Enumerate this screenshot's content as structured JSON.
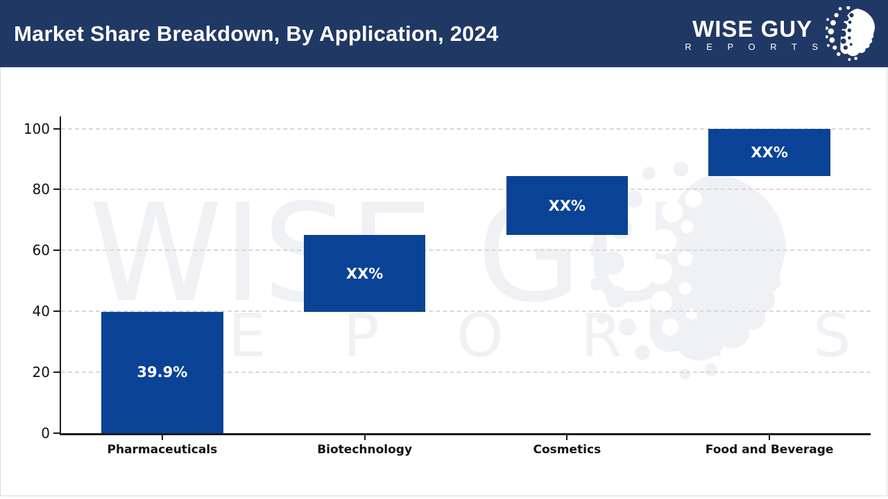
{
  "header": {
    "title": "Market Share Breakdown, By Application, 2024",
    "logo": {
      "line1": "WISE GUY",
      "line2": "R E P O R T S"
    }
  },
  "watermark": {
    "line1": "WISE GUY",
    "line2": "R E P O R T S"
  },
  "chart_data": {
    "type": "bar",
    "subtype": "floating-waterfall",
    "title": "Market Share Breakdown, By Application, 2024",
    "categories": [
      "Pharmaceuticals",
      "Biotechnology",
      "Cosmetics",
      "Food and Beverage"
    ],
    "series": [
      {
        "name": "Market share (%)",
        "ranges": [
          [
            0,
            39.9
          ],
          [
            39.9,
            65
          ],
          [
            65,
            84.5
          ],
          [
            84.5,
            100
          ]
        ],
        "labels": [
          "39.9%",
          "XX%",
          "XX%",
          "XX%"
        ]
      }
    ],
    "ylim": [
      0,
      104
    ],
    "yticks": [
      0,
      20,
      40,
      60,
      80,
      100
    ],
    "grid": "dashed-horizontal",
    "legend": "none",
    "bar_color": "#0a4396",
    "bar_label_color": "#ffffff",
    "axis_color": "#1a1a1a",
    "gridline_color": "#d8d8d8"
  }
}
